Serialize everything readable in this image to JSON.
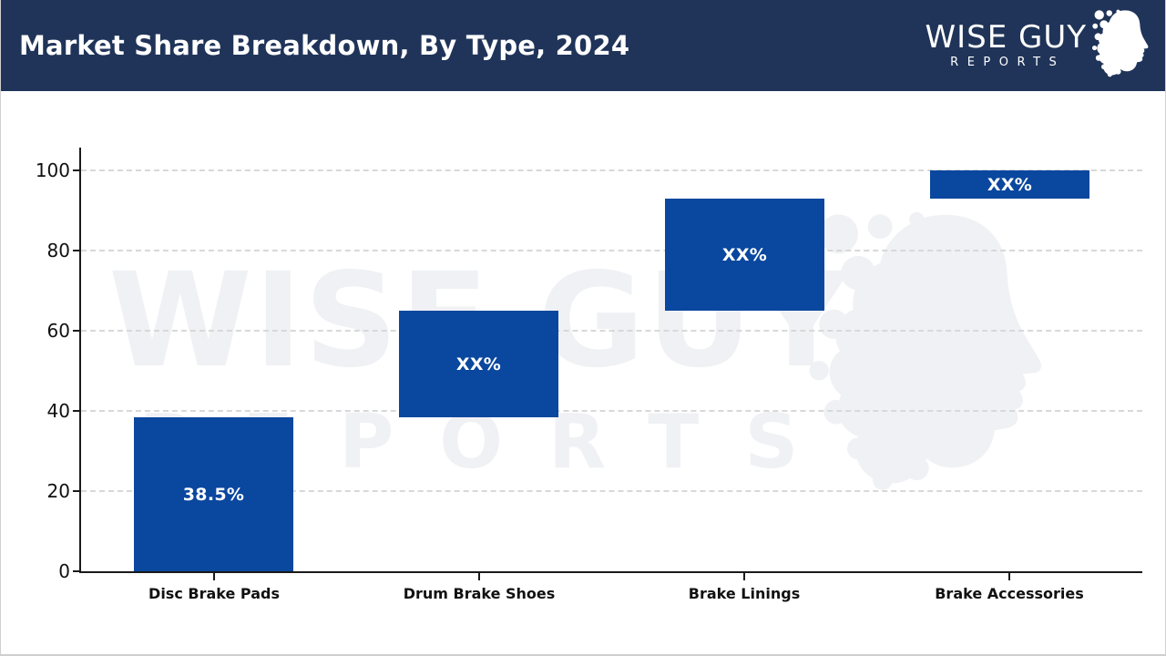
{
  "brand": {
    "name": "WISE GUY",
    "tagline": "REPORTS"
  },
  "header": {
    "title": "Market Share Breakdown, By Type, 2024"
  },
  "icons": {
    "logo_face": "dotted-face-profile-icon",
    "watermark_face": "dotted-face-profile-icon"
  },
  "colors": {
    "header_bg": "#203459",
    "bar": "#0a479e",
    "bar_label": "#ffffff",
    "grid": "#d8d8d8",
    "axis": "#1a1a1a",
    "watermark": "#f0f1f4"
  },
  "chart_data": {
    "type": "bar",
    "variant": "floating-segment-waterfall",
    "title": "Market Share Breakdown, By Type, 2024",
    "categories": [
      "Disc Brake Pads",
      "Drum Brake Shoes",
      "Brake Linings",
      "Brake Accessories"
    ],
    "segments": [
      {
        "category": "Disc Brake Pads",
        "start": 0,
        "end": 38.5,
        "value": 38.5,
        "label": "38.5%"
      },
      {
        "category": "Drum Brake Shoes",
        "start": 38.5,
        "end": 65,
        "value": 26.5,
        "label": "XX%"
      },
      {
        "category": "Brake Linings",
        "start": 65,
        "end": 93,
        "value": 28,
        "label": "XX%"
      },
      {
        "category": "Brake Accessories",
        "start": 93,
        "end": 100,
        "value": 7,
        "label": "XX%"
      }
    ],
    "xlabel": "",
    "ylabel": "",
    "ylim": [
      0,
      100
    ],
    "yticks": [
      0,
      20,
      40,
      60,
      80,
      100
    ],
    "grid": "horizontal-dashed",
    "legend": "none",
    "bar_color": "#0a479e",
    "bar_label_color": "#ffffff"
  }
}
